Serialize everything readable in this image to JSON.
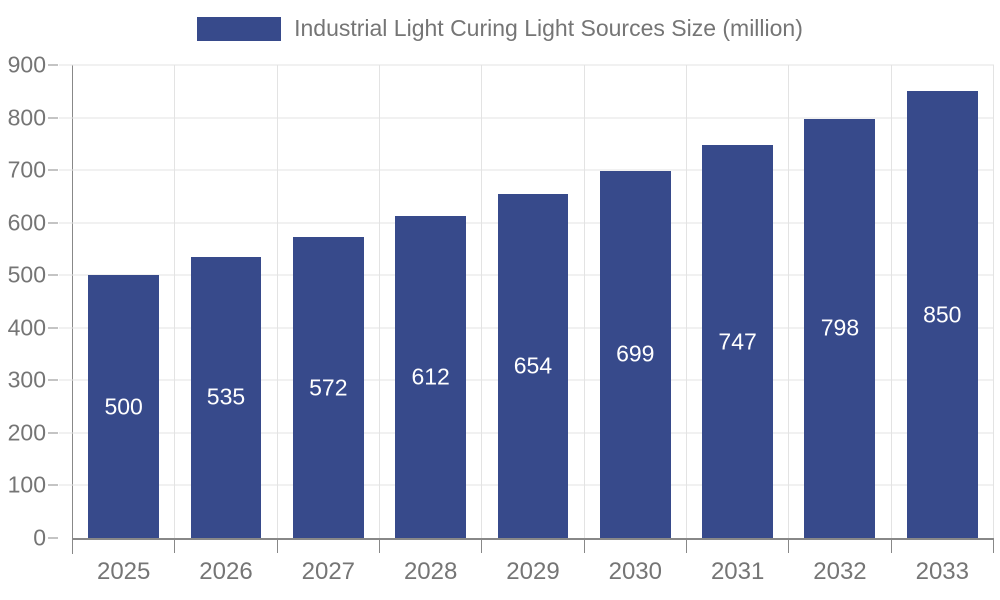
{
  "legend": {
    "label": "Industrial Light Curing Light Sources Size (million)"
  },
  "chart_data": {
    "type": "bar",
    "title": "Industrial Light Curing Light Sources Size (million)",
    "categories": [
      "2025",
      "2026",
      "2027",
      "2028",
      "2029",
      "2030",
      "2031",
      "2032",
      "2033"
    ],
    "values": [
      500,
      535,
      572,
      612,
      654,
      699,
      747,
      798,
      850
    ],
    "xlabel": "",
    "ylabel": "",
    "ylim": [
      0,
      900
    ],
    "yticks": [
      0,
      100,
      200,
      300,
      400,
      500,
      600,
      700,
      800,
      900
    ],
    "grid": true,
    "legend_position": "top",
    "value_labels": "inside-center",
    "colors": {
      "bar": "#374a8b",
      "bar_label": "#ffffff",
      "axis_text": "#757575",
      "axis_line": "#888888",
      "grid": "#e3e3e3",
      "background": "#ffffff"
    }
  }
}
